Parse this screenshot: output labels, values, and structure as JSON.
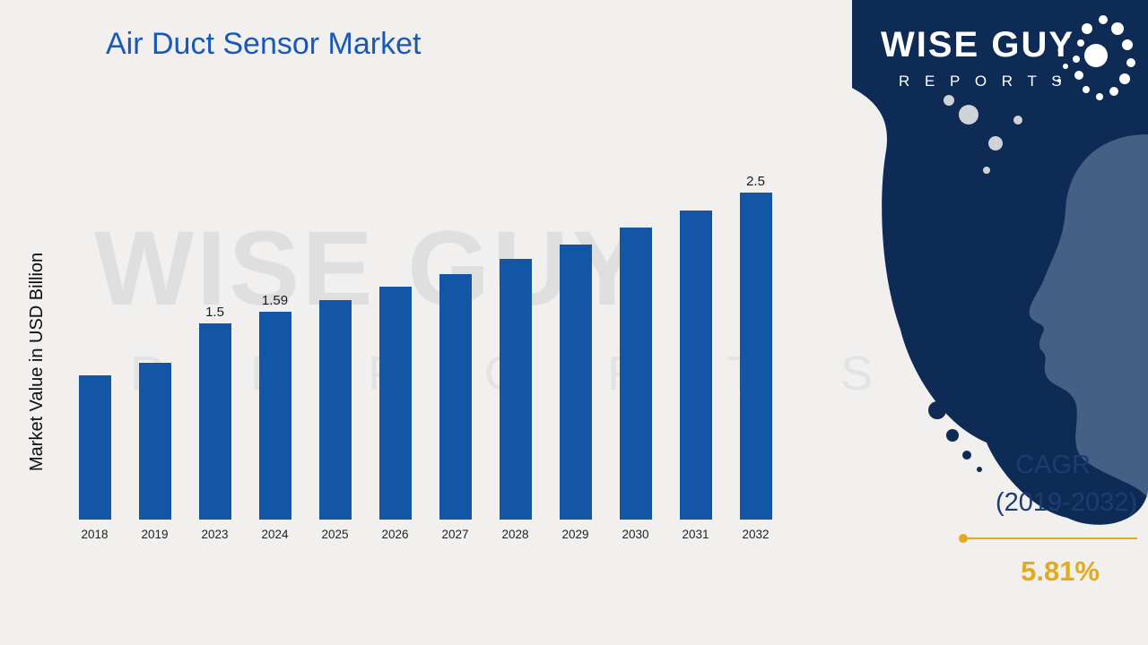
{
  "title": "Air Duct Sensor Market",
  "brand": {
    "line1": "WISE GUY",
    "line2": "R E P O R T S"
  },
  "watermark": {
    "line1": "WISE GUY",
    "line2": "R E P O R T S"
  },
  "cagr": {
    "label": "CAGR",
    "range": "(2019-2032)",
    "value": "5.81%"
  },
  "colors": {
    "title_blue": "#1a58b8",
    "bar_blue": "#1356a5",
    "panel_navy": "#0e2b55",
    "gold": "#e3aa1b",
    "cagr_text": "#1c3c72",
    "background": "#f1f0ee"
  },
  "chart_data": {
    "type": "bar",
    "title": "Air Duct Sensor Market",
    "ylabel": "Market Value in USD Billion",
    "xlabel": "",
    "unit": "USD Billion",
    "categories": [
      "2018",
      "2019",
      "2023",
      "2024",
      "2025",
      "2026",
      "2027",
      "2028",
      "2029",
      "2030",
      "2031",
      "2032"
    ],
    "values": [
      1.1,
      1.2,
      1.5,
      1.59,
      1.68,
      1.78,
      1.88,
      1.99,
      2.1,
      2.23,
      2.36,
      2.5
    ],
    "bar_labels": [
      "",
      "",
      "1.5",
      "1.59",
      "",
      "",
      "",
      "",
      "",
      "",
      "",
      "2.5"
    ],
    "ylim": [
      0,
      2.74
    ],
    "grid": false,
    "legend": false,
    "bar_color": "#1356a5"
  }
}
